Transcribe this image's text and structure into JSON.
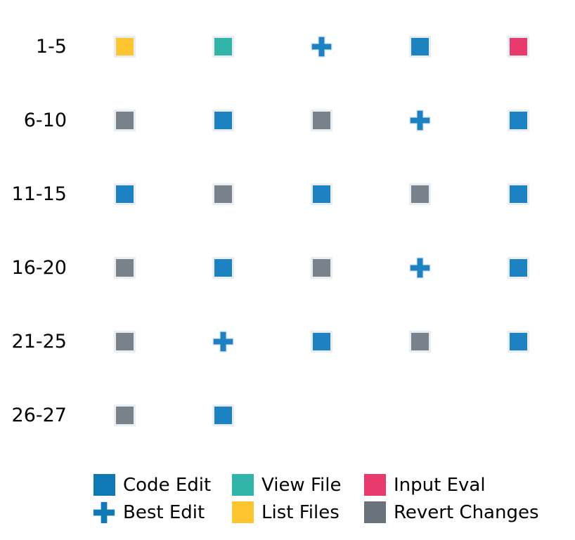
{
  "figure": {
    "background_color": "#ffffff",
    "text_color": "#000000"
  },
  "chart_data": {
    "type": "scatter",
    "title": "",
    "xlabel": "",
    "ylabel": "",
    "grid": false,
    "columns_per_row": 5,
    "y_tick_labels": [
      "1-5",
      "6-10",
      "11-15",
      "16-20",
      "21-25",
      "26-27"
    ],
    "rows": [
      {
        "label": "1-5",
        "actions": [
          "List Files",
          "View File",
          "Best Edit",
          "Code Edit",
          "Input Eval"
        ]
      },
      {
        "label": "6-10",
        "actions": [
          "Revert Changes",
          "Code Edit",
          "Revert Changes",
          "Best Edit",
          "Code Edit"
        ]
      },
      {
        "label": "11-15",
        "actions": [
          "Code Edit",
          "Revert Changes",
          "Code Edit",
          "Revert Changes",
          "Code Edit"
        ]
      },
      {
        "label": "16-20",
        "actions": [
          "Revert Changes",
          "Code Edit",
          "Revert Changes",
          "Best Edit",
          "Code Edit"
        ]
      },
      {
        "label": "21-25",
        "actions": [
          "Revert Changes",
          "Best Edit",
          "Code Edit",
          "Revert Changes",
          "Code Edit"
        ]
      },
      {
        "label": "26-27",
        "actions": [
          "Revert Changes",
          "Code Edit"
        ]
      }
    ],
    "marker_styles": {
      "Code Edit": {
        "marker": "square",
        "color": "#1d82c1"
      },
      "Best Edit": {
        "marker": "plus",
        "color": "#1d82c1"
      },
      "View File": {
        "marker": "square",
        "color": "#31b5ab"
      },
      "List Files": {
        "marker": "square",
        "color": "#fdc52e"
      },
      "Input Eval": {
        "marker": "square",
        "color": "#e83a6d"
      },
      "Revert Changes": {
        "marker": "square",
        "color": "#79818a"
      }
    },
    "marker_edge_color": "#e9eef4",
    "legend": {
      "position": "bottom",
      "rows": 2,
      "cols": 3,
      "entries": [
        {
          "label": "Code Edit",
          "marker": "square",
          "color": "#0f79b6"
        },
        {
          "label": "View File",
          "marker": "square",
          "color": "#31b5ab"
        },
        {
          "label": "Input Eval",
          "marker": "square",
          "color": "#e83a6d"
        },
        {
          "label": "Best Edit",
          "marker": "plus",
          "color": "#0f79b6"
        },
        {
          "label": "List Files",
          "marker": "square",
          "color": "#fdc52e"
        },
        {
          "label": "Revert Changes",
          "marker": "square",
          "color": "#6a727c"
        }
      ]
    }
  }
}
